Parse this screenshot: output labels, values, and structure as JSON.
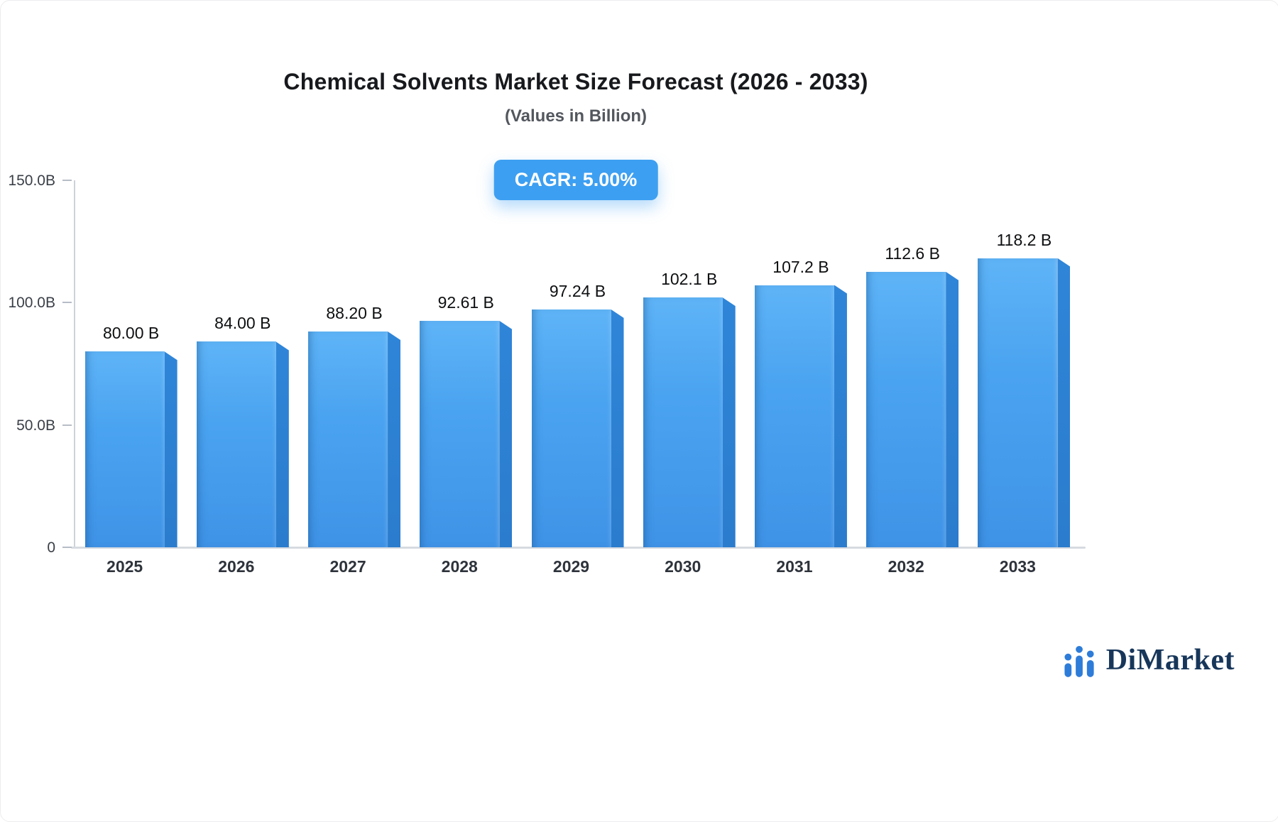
{
  "header": {
    "title": "Chemical Solvents Market Size Forecast (2026 - 2033)",
    "subtitle": "(Values in Billion)",
    "cagr_badge": "CAGR: 5.00%"
  },
  "brand": {
    "name": "DiMarket",
    "icon": "bar-chart-logo-icon",
    "icon_color": "#2e7cd9",
    "text_color": "#17365a"
  },
  "colors": {
    "bar_front_top": "#5fb4f7",
    "bar_front_bottom": "#3f93e7",
    "bar_side": "#2b7ccd",
    "badge_background": "#3d9ff1",
    "axis": "#cdd2d9"
  },
  "chart_data": {
    "type": "bar",
    "title": "Chemical Solvents Market Size Forecast (2026 - 2033)",
    "subtitle": "(Values in Billion)",
    "xlabel": "",
    "ylabel": "",
    "ylim": [
      0,
      150
    ],
    "grid": false,
    "legend": "none",
    "categories": [
      "2025",
      "2026",
      "2027",
      "2028",
      "2029",
      "2030",
      "2031",
      "2032",
      "2033"
    ],
    "values": [
      80.0,
      84.0,
      88.2,
      92.61,
      97.24,
      102.1,
      107.2,
      112.6,
      118.2
    ],
    "value_labels": [
      "80.00 B",
      "84.00 B",
      "88.20 B",
      "92.61 B",
      "97.24 B",
      "102.1 B",
      "107.2 B",
      "112.6 B",
      "118.2 B"
    ],
    "y_ticks": [
      {
        "value": 150,
        "label": "150.0B"
      },
      {
        "value": 100,
        "label": "100.0B"
      },
      {
        "value": 50,
        "label": "50.0B"
      },
      {
        "value": 0,
        "label": "0"
      }
    ],
    "annotations": [
      "CAGR: 5.00%"
    ]
  }
}
